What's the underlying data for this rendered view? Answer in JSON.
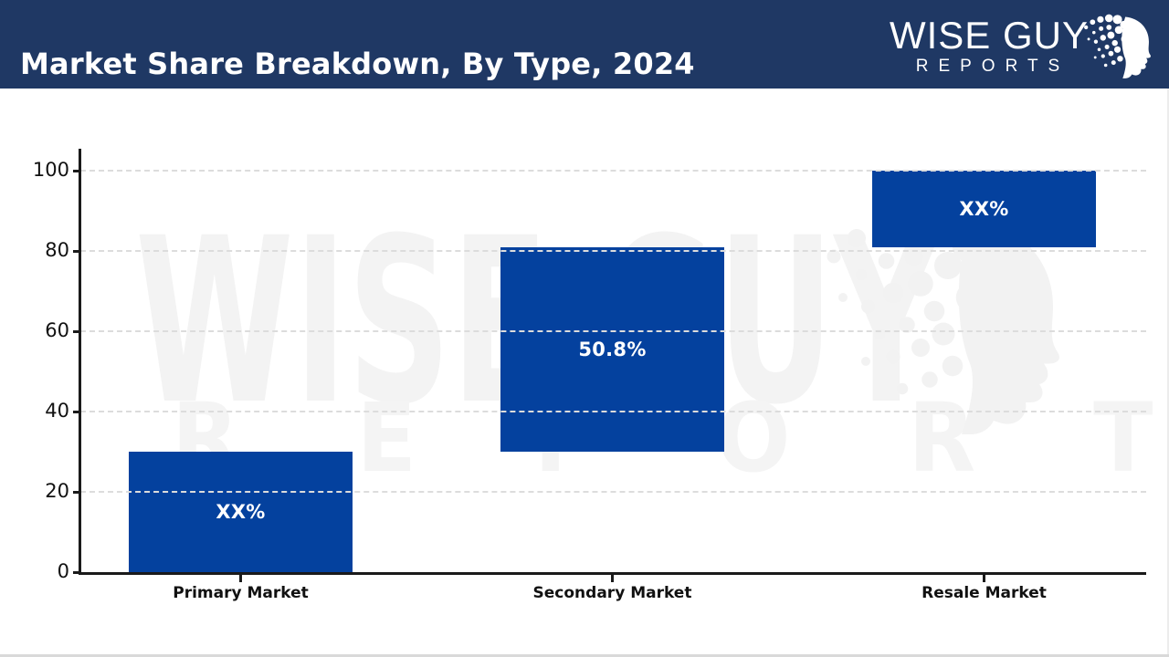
{
  "header": {
    "title": "Market Share Breakdown, By Type, 2024",
    "logo": {
      "line1": "WISE GUY",
      "line2": "REPORTS"
    }
  },
  "watermark": {
    "line1": "WISE GUY",
    "line2": "R E P O R T S"
  },
  "chart_data": {
    "type": "bar",
    "subtype": "waterfall",
    "title": "Market Share Breakdown, By Type, 2024",
    "categories": [
      "Primary Market",
      "Secondary Market",
      "Resale Market"
    ],
    "values": [
      30,
      50.8,
      19.2
    ],
    "labels": [
      "XX%",
      "50.8%",
      "XX%"
    ],
    "cumulative": [
      [
        0,
        30
      ],
      [
        30,
        80.8
      ],
      [
        80.8,
        100
      ]
    ],
    "ylim": [
      0,
      100
    ],
    "yticks": [
      0,
      20,
      40,
      60,
      80,
      100
    ],
    "xlabel": "",
    "ylabel": "",
    "grid": "horizontal-dashed",
    "legend": "none",
    "bar_color": "#04419E",
    "bar_label_color": "#FFFFFF"
  },
  "colors": {
    "header_bg": "#1F3864",
    "axis": "#1a1a1a",
    "gridline": "#dcdcdc",
    "watermark": "#f2f2f2",
    "background": "#ffffff"
  }
}
